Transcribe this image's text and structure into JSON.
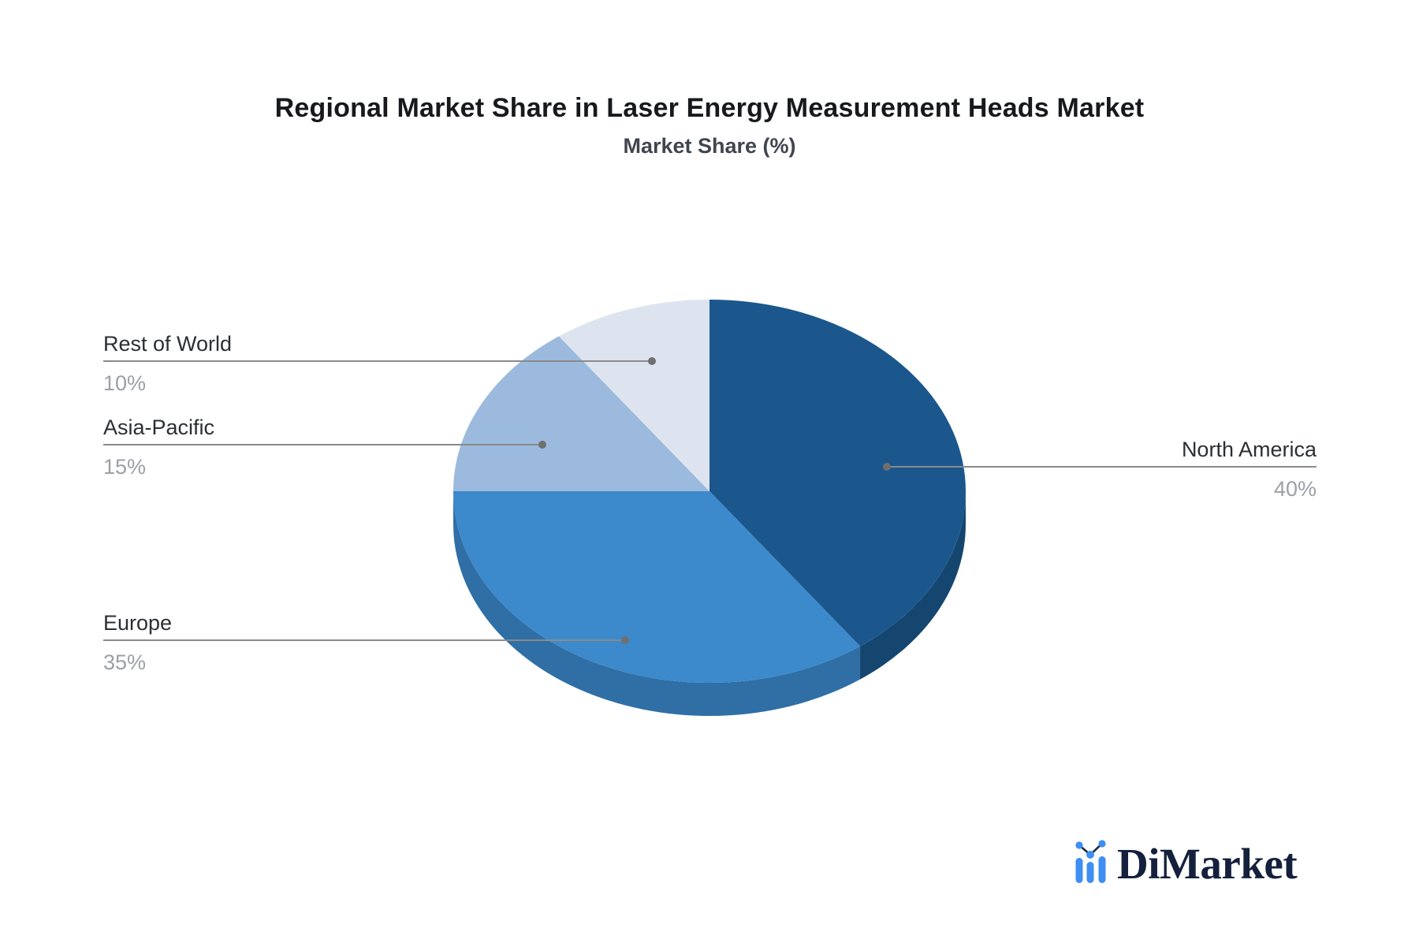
{
  "header": {
    "title": "Regional Market Share in Laser Energy Measurement Heads Market",
    "subtitle": "Market Share (%)"
  },
  "chart_data": {
    "type": "pie",
    "style": "3d-pie",
    "title": "Regional Market Share in Laser Energy Measurement Heads Market",
    "subtitle": "Market Share (%)",
    "unit": "%",
    "start_angle": "12-oclock",
    "direction": "clockwise",
    "legend_position": "callout-labels",
    "slices": [
      {
        "label": "North America",
        "value": 40,
        "display": "40%",
        "color": "#1B578D",
        "depth_color": "#15466F",
        "callout_side": "right"
      },
      {
        "label": "Europe",
        "value": 35,
        "display": "35%",
        "color": "#3C89CC",
        "depth_color": "#2F6FA6",
        "callout_side": "left"
      },
      {
        "label": "Asia-Pacific",
        "value": 15,
        "display": "15%",
        "color": "#9CBADD",
        "depth_color": "#7E9BBD",
        "callout_side": "left"
      },
      {
        "label": "Rest of World",
        "value": 10,
        "display": "10%",
        "color": "#DEE4EF",
        "depth_color": "#B9C2D1",
        "callout_side": "left"
      }
    ]
  },
  "branding": {
    "logo_text": "DiMarket",
    "logo_icon": "bar-chart-logo-icon",
    "logo_text_color": "#14203C",
    "logo_icon_color": "#3E8EF4",
    "logo_line_color": "#1C2B4A"
  },
  "palette": {
    "background": "#FFFFFF",
    "title_color": "#17191D",
    "subtitle_color": "#40454E",
    "label_color": "#2B2F33",
    "value_color": "#9BA0A7",
    "callout_line_color": "#8B8B8B",
    "callout_dot_color": "#6F6F6F"
  }
}
